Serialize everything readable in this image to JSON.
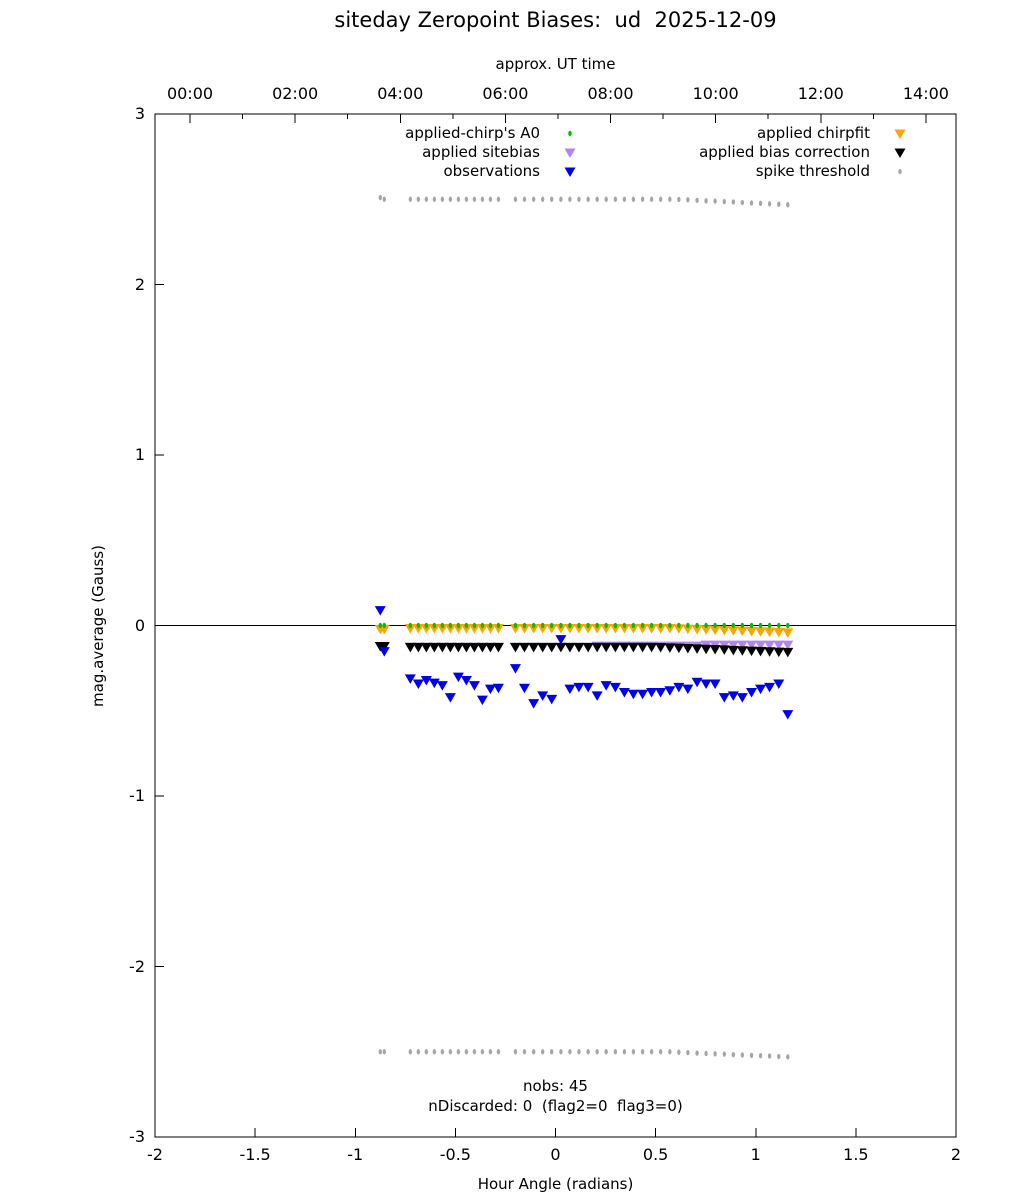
{
  "title": "siteday Zeropoint Biases:  ud  2025-12-09",
  "top_axis": {
    "label": "approx. UT time",
    "tick_labels": [
      "00:00",
      "02:00",
      "04:00",
      "06:00",
      "08:00",
      "10:00",
      "12:00",
      "14:00"
    ],
    "minor_ticks": "hourly"
  },
  "left_axis": {
    "label": "mag.average (Gauss)",
    "tick_labels": [
      "3",
      "2",
      "1",
      "0",
      "-1",
      "-2",
      "-3"
    ],
    "tick_values": [
      3,
      2,
      1,
      0,
      -1,
      -2,
      -3
    ]
  },
  "bottom_axis": {
    "label": "Hour Angle (radians)",
    "tick_labels": [
      "-2",
      "-1.5",
      "-1",
      "-0.5",
      "0",
      "0.5",
      "1",
      "1.5",
      "2"
    ],
    "tick_values": [
      -2,
      -1.5,
      -1,
      -0.5,
      0,
      0.5,
      1,
      1.5,
      2
    ]
  },
  "annotations": {
    "nobs": "nobs: 45",
    "ndiscarded": "nDiscarded: 0  (flag2=0  flag3=0)"
  },
  "colors": {
    "a0_green": "#00c000",
    "chirpfit_orange": "#ffa500",
    "sitebias_purple": "#b285f0",
    "bias_black": "#000000",
    "observations_blue": "#0000ee",
    "spike_gray": "#a6a6a6",
    "axis": "#000000",
    "background": "#ffffff"
  },
  "legend": {
    "left_column": [
      {
        "label": "applied-chirp's A0",
        "marker": "dot",
        "color": "#00c000",
        "series": "applied-chirp's A0"
      },
      {
        "label": "applied sitebias",
        "marker": "triangle-down",
        "color": "#b285f0",
        "series": "applied sitebias"
      },
      {
        "label": "observations",
        "marker": "triangle-down",
        "color": "#0000ee",
        "series": "observations"
      }
    ],
    "right_column": [
      {
        "label": "applied chirpfit",
        "marker": "triangle-down",
        "color": "#ffa500",
        "series": "applied chirpfit"
      },
      {
        "label": "applied bias correction",
        "marker": "triangle-down",
        "color": "#000000",
        "series": "applied bias correction"
      },
      {
        "label": "spike threshold",
        "marker": "small-dot",
        "color": "#a6a6a6",
        "series": "spike threshold"
      }
    ]
  },
  "chart_data": {
    "type": "scatter",
    "title": "siteday Zeropoint Biases:  ud  2025-12-09",
    "xlabel": "Hour Angle (radians)",
    "ylabel": "mag.average (Gauss)",
    "x2label": "approx. UT time",
    "xlim": [
      -2,
      2
    ],
    "ylim": [
      -3,
      3
    ],
    "x2lim_hours": [
      -0.665,
      14.555
    ],
    "grid": false,
    "legend_position": "top-inside-two-columns",
    "x": [
      -0.875,
      -0.855,
      -0.725,
      -0.685,
      -0.645,
      -0.605,
      -0.565,
      -0.525,
      -0.485,
      -0.445,
      -0.405,
      -0.365,
      -0.325,
      -0.285,
      -0.2,
      -0.155,
      -0.109,
      -0.064,
      -0.019,
      0.027,
      0.072,
      0.117,
      0.163,
      0.208,
      0.253,
      0.299,
      0.344,
      0.389,
      0.435,
      0.48,
      0.525,
      0.571,
      0.616,
      0.661,
      0.707,
      0.752,
      0.797,
      0.843,
      0.888,
      0.933,
      0.979,
      1.024,
      1.069,
      1.115,
      1.16
    ],
    "series": [
      {
        "name": "spike threshold (upper)",
        "legend": "spike threshold",
        "marker": "small-dot",
        "color": "#a6a6a6",
        "y": [
          2.51,
          2.5,
          2.5,
          2.5,
          2.5,
          2.5,
          2.5,
          2.5,
          2.5,
          2.5,
          2.5,
          2.5,
          2.5,
          2.5,
          2.5,
          2.5,
          2.5,
          2.5,
          2.5,
          2.5,
          2.5,
          2.5,
          2.5,
          2.5,
          2.5,
          2.5,
          2.5,
          2.5,
          2.5,
          2.5,
          2.5,
          2.5,
          2.499,
          2.497,
          2.494,
          2.491,
          2.489,
          2.486,
          2.484,
          2.481,
          2.478,
          2.476,
          2.473,
          2.471,
          2.468
        ]
      },
      {
        "name": "spike threshold (lower)",
        "legend": "spike threshold",
        "marker": "small-dot",
        "color": "#a6a6a6",
        "y": [
          -2.5,
          -2.5,
          -2.5,
          -2.5,
          -2.5,
          -2.5,
          -2.5,
          -2.5,
          -2.5,
          -2.5,
          -2.5,
          -2.5,
          -2.5,
          -2.5,
          -2.5,
          -2.5,
          -2.5,
          -2.5,
          -2.5,
          -2.5,
          -2.5,
          -2.5,
          -2.5,
          -2.5,
          -2.5,
          -2.5,
          -2.5,
          -2.5,
          -2.5,
          -2.5,
          -2.5,
          -2.5,
          -2.503,
          -2.505,
          -2.508,
          -2.51,
          -2.512,
          -2.514,
          -2.517,
          -2.519,
          -2.521,
          -2.523,
          -2.525,
          -2.528,
          -2.53
        ]
      },
      {
        "name": "applied sitebias",
        "legend": "applied sitebias",
        "marker": "triangle-down",
        "color": "#b285f0",
        "y": [
          -0.12,
          -0.12,
          -0.125,
          -0.125,
          -0.125,
          -0.125,
          -0.125,
          -0.125,
          -0.125,
          -0.125,
          -0.125,
          -0.125,
          -0.125,
          -0.125,
          -0.125,
          -0.125,
          -0.125,
          -0.125,
          -0.125,
          -0.125,
          -0.125,
          -0.125,
          -0.125,
          -0.118,
          -0.118,
          -0.118,
          -0.118,
          -0.118,
          -0.118,
          -0.118,
          -0.118,
          -0.118,
          -0.118,
          -0.118,
          -0.118,
          -0.112,
          -0.112,
          -0.112,
          -0.112,
          -0.112,
          -0.112,
          -0.112,
          -0.112,
          -0.112,
          -0.112
        ]
      },
      {
        "name": "applied bias correction",
        "legend": "applied bias correction",
        "marker": "triangle-down",
        "color": "#000000",
        "y": [
          -0.12,
          -0.12,
          -0.125,
          -0.125,
          -0.125,
          -0.125,
          -0.125,
          -0.125,
          -0.125,
          -0.125,
          -0.125,
          -0.125,
          -0.125,
          -0.125,
          -0.125,
          -0.125,
          -0.125,
          -0.125,
          -0.125,
          -0.125,
          -0.125,
          -0.125,
          -0.125,
          -0.125,
          -0.125,
          -0.125,
          -0.125,
          -0.125,
          -0.125,
          -0.125,
          -0.126,
          -0.128,
          -0.13,
          -0.132,
          -0.134,
          -0.136,
          -0.138,
          -0.14,
          -0.143,
          -0.145,
          -0.147,
          -0.149,
          -0.151,
          -0.153,
          -0.155
        ]
      },
      {
        "name": "applied chirpfit",
        "legend": "applied chirpfit",
        "marker": "triangle-down",
        "color": "#ffa500",
        "y": [
          -0.02,
          -0.02,
          -0.015,
          -0.015,
          -0.015,
          -0.015,
          -0.015,
          -0.015,
          -0.015,
          -0.015,
          -0.015,
          -0.015,
          -0.015,
          -0.015,
          -0.015,
          -0.015,
          -0.015,
          -0.015,
          -0.015,
          -0.015,
          -0.015,
          -0.015,
          -0.015,
          -0.015,
          -0.015,
          -0.015,
          -0.015,
          -0.015,
          -0.015,
          -0.015,
          -0.015,
          -0.015,
          -0.016,
          -0.018,
          -0.02,
          -0.022,
          -0.024,
          -0.026,
          -0.028,
          -0.03,
          -0.032,
          -0.034,
          -0.036,
          -0.038,
          -0.04
        ]
      },
      {
        "name": "applied-chirp's A0",
        "legend": "applied-chirp's A0",
        "marker": "dot",
        "color": "#00c000",
        "y": [
          0,
          0,
          0,
          0,
          0,
          0,
          0,
          0,
          0,
          0,
          0,
          0,
          0,
          0,
          0,
          0,
          0,
          0,
          0,
          0,
          0,
          0,
          0,
          0,
          0,
          0,
          0,
          0,
          0,
          0,
          0,
          0,
          0,
          0,
          0,
          0,
          0,
          0,
          0,
          0,
          0,
          0,
          0,
          0,
          0
        ]
      },
      {
        "name": "observations",
        "legend": "observations",
        "marker": "triangle-down",
        "color": "#0000ee",
        "y": [
          0.09,
          -0.15,
          -0.31,
          -0.34,
          -0.32,
          -0.335,
          -0.35,
          -0.42,
          -0.3,
          -0.32,
          -0.35,
          -0.435,
          -0.37,
          -0.365,
          -0.25,
          -0.365,
          -0.455,
          -0.41,
          -0.43,
          -0.08,
          -0.37,
          -0.36,
          -0.36,
          -0.41,
          -0.35,
          -0.36,
          -0.39,
          -0.4,
          -0.4,
          -0.39,
          -0.39,
          -0.38,
          -0.36,
          -0.37,
          -0.33,
          -0.34,
          -0.34,
          -0.42,
          -0.41,
          -0.42,
          -0.39,
          -0.37,
          -0.36,
          -0.34,
          -0.52
        ]
      }
    ]
  }
}
